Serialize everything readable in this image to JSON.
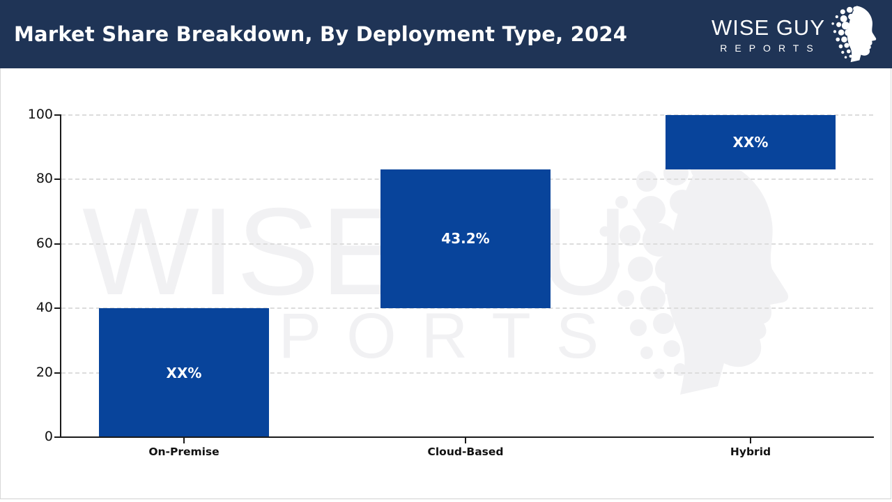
{
  "header": {
    "title": "Market Share Breakdown, By Deployment Type, 2024",
    "bg_color": "#1f3456",
    "logo": {
      "brand_line1": "WISE GUY",
      "brand_line2": "REPORTS",
      "head_icon": "wiseguy-head-icon"
    }
  },
  "watermark": {
    "brand_line1": "WISE GUY",
    "brand_line2": "REPORTS",
    "color": "#f1f1f3"
  },
  "chart_data": {
    "type": "bar",
    "subtype": "floating-waterfall",
    "title": "Market Share Breakdown, By Deployment Type, 2024",
    "categories": [
      "On-Premise",
      "Cloud-Based",
      "Hybrid"
    ],
    "series": [
      {
        "name": "Market Share",
        "segments": [
          {
            "category": "On-Premise",
            "start": 0,
            "end": 40,
            "label": "XX%"
          },
          {
            "category": "Cloud-Based",
            "start": 40,
            "end": 83.2,
            "label": "43.2%"
          },
          {
            "category": "Hybrid",
            "start": 83.2,
            "end": 100,
            "label": "XX%"
          }
        ]
      }
    ],
    "xlabel": "",
    "ylabel": "",
    "ylim": [
      0,
      100
    ],
    "yticks": [
      0,
      20,
      40,
      60,
      80,
      100
    ],
    "grid": "horizontal-dashed",
    "legend": "none",
    "colors": {
      "bar": "#08449b",
      "bar_label": "#ffffff",
      "axis": "#1a1a1a",
      "gridline": "#dcdcdc"
    }
  }
}
